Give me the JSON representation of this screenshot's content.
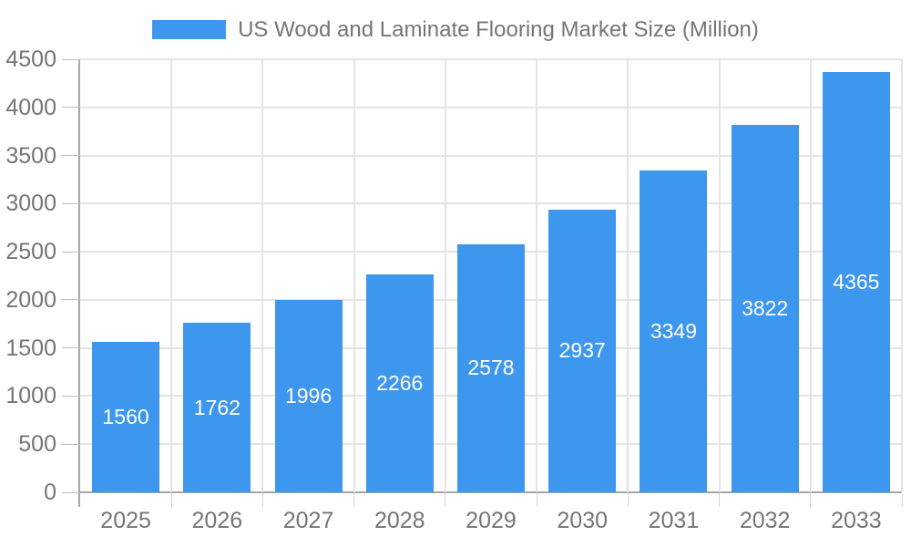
{
  "legend": {
    "series_label": "US Wood and Laminate Flooring Market Size (Million)"
  },
  "chart_data": {
    "type": "bar",
    "title": "US Wood and Laminate Flooring Market Size (Million)",
    "categories": [
      "2025",
      "2026",
      "2027",
      "2028",
      "2029",
      "2030",
      "2031",
      "2032",
      "2033"
    ],
    "values": [
      1560,
      1762,
      1996,
      2266,
      2578,
      2937,
      3349,
      3822,
      4365
    ],
    "xlabel": "",
    "ylabel": "",
    "ylim": [
      0,
      4500
    ],
    "ytick_step": 500,
    "yticks": [
      0,
      500,
      1000,
      1500,
      2000,
      2500,
      3000,
      3500,
      4000,
      4500
    ],
    "grid": true,
    "legend_position": "top",
    "value_label_position": "inside-center"
  },
  "colors": {
    "bar": "#3D97EE",
    "grid": "#E4E4E4",
    "axis": "#A6A6A6",
    "y_tick": "#BDBDBD",
    "category_tick": "#D4D4D4",
    "label_text": "#757575",
    "value_text": "#FFFFFF",
    "background": "#FFFFFF"
  }
}
